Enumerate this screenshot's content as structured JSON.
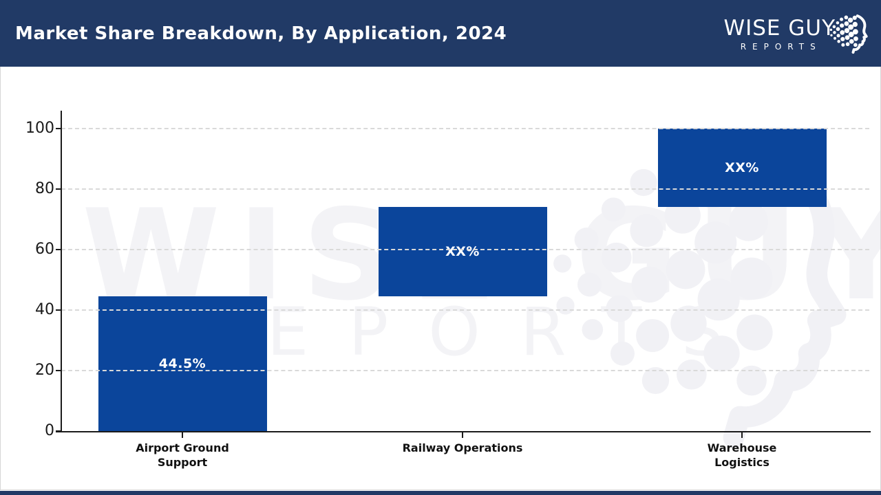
{
  "header": {
    "title": "Market Share Breakdown, By Application, 2024",
    "bg_color": "#213a66",
    "logo": {
      "line1": "WISE GUY",
      "line2": "REPORTS"
    }
  },
  "watermark": {
    "line1": "WISE GUY",
    "line2": "REPORTS"
  },
  "chart_data": {
    "type": "bar",
    "subtype": "floating-waterfall",
    "title": "Market Share Breakdown, By Application, 2024",
    "categories": [
      "Airport Ground Support",
      "Railway Operations",
      "Warehouse Logistics"
    ],
    "category_lines": [
      [
        "Airport Ground",
        "Support"
      ],
      [
        "Railway Operations"
      ],
      [
        "Warehouse",
        "Logistics"
      ]
    ],
    "segments": [
      {
        "category": "Airport Ground Support",
        "start": 0,
        "end": 44.5,
        "label": "44.5%"
      },
      {
        "category": "Railway Operations",
        "start": 44.5,
        "end": 74,
        "label": "XX%"
      },
      {
        "category": "Warehouse Logistics",
        "start": 74,
        "end": 100,
        "label": "XX%"
      }
    ],
    "ylim": [
      0,
      100
    ],
    "yticks": [
      0,
      20,
      40,
      60,
      80,
      100
    ],
    "xlabel": "",
    "ylabel": "",
    "grid": "horizontal-dashed",
    "legend": "none",
    "bar_color": "#0b459b",
    "label_color": "#ffffff",
    "gridline_color": "#d9d9d9",
    "axis_color": "#1a1a1a"
  }
}
